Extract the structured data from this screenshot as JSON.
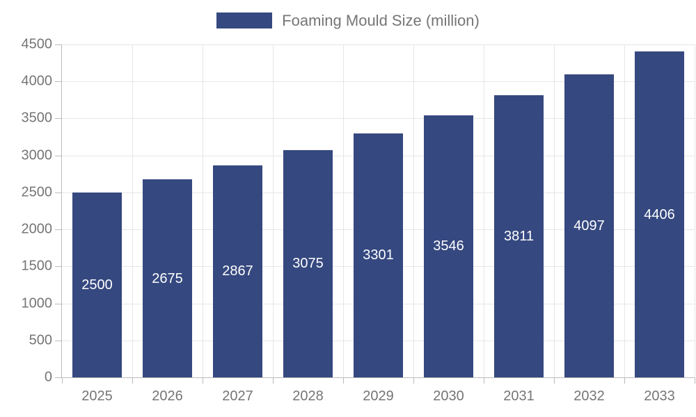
{
  "chart_data": {
    "type": "bar",
    "title": "Foaming Mould Size (million)",
    "categories": [
      "2025",
      "2026",
      "2027",
      "2028",
      "2029",
      "2030",
      "2031",
      "2032",
      "2033"
    ],
    "values": [
      2500,
      2675,
      2867,
      3075,
      3301,
      3546,
      3811,
      4097,
      4406
    ],
    "xlabel": "",
    "ylabel": "",
    "ylim": [
      0,
      4500
    ],
    "ytick_step": 500,
    "grid": true,
    "legend_position": "top-center",
    "bar_label_position": "inside-center",
    "colors": {
      "bar": "#35487f",
      "bar_label": "#ffffff",
      "axis_text": "#757575",
      "grid_line": "#e6e6e6",
      "axis_line": "#bbbbbb"
    }
  }
}
